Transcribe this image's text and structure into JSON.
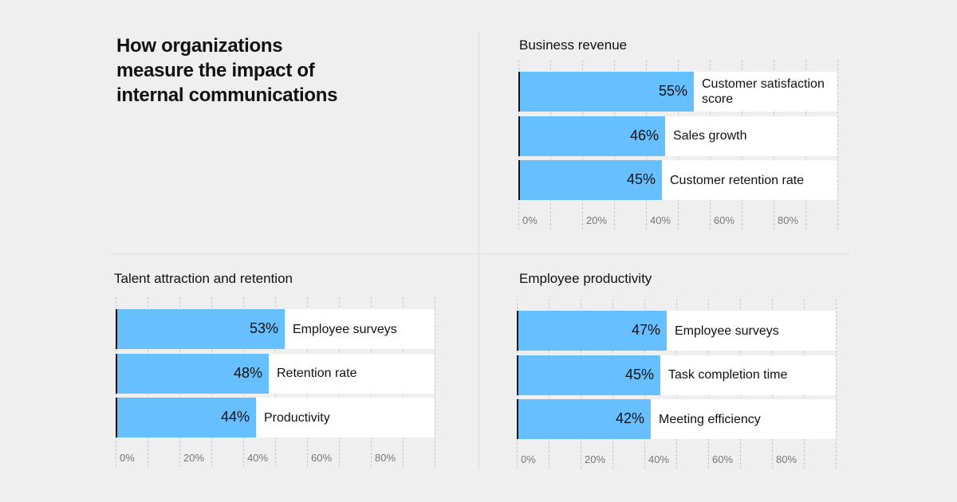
{
  "title": "How organizations measure the impact of internal communications",
  "chart_data": [
    {
      "type": "bar",
      "orientation": "horizontal",
      "title": "Business revenue",
      "categories": [
        "Customer satisfaction score",
        "Sales growth",
        "Customer retention rate"
      ],
      "values": [
        55,
        46,
        45
      ],
      "value_labels": [
        "55%",
        "46%",
        "45%"
      ],
      "color": "#66bfff",
      "xlim": [
        0,
        100
      ],
      "xticks": [
        {
          "value": 0,
          "label": "0%"
        },
        {
          "value": 20,
          "label": "20%"
        },
        {
          "value": 40,
          "label": "40%"
        },
        {
          "value": 60,
          "label": "60%"
        },
        {
          "value": 80,
          "label": "80%"
        }
      ],
      "gridlines": [
        0,
        10,
        20,
        30,
        40,
        50,
        60,
        70,
        80,
        90,
        100
      ]
    },
    {
      "type": "bar",
      "orientation": "horizontal",
      "title": "Talent attraction and retention",
      "categories": [
        "Employee surveys",
        "Retention rate",
        "Productivity"
      ],
      "values": [
        53,
        48,
        44
      ],
      "value_labels": [
        "53%",
        "48%",
        "44%"
      ],
      "color": "#66bfff",
      "xlim": [
        0,
        100
      ],
      "xticks": [
        {
          "value": 0,
          "label": "0%"
        },
        {
          "value": 20,
          "label": "20%"
        },
        {
          "value": 40,
          "label": "40%"
        },
        {
          "value": 60,
          "label": "60%"
        },
        {
          "value": 80,
          "label": "80%"
        }
      ],
      "gridlines": [
        0,
        10,
        20,
        30,
        40,
        50,
        60,
        70,
        80,
        90,
        100
      ]
    },
    {
      "type": "bar",
      "orientation": "horizontal",
      "title": "Employee productivity",
      "categories": [
        "Employee surveys",
        "Task completion time",
        "Meeting efficiency"
      ],
      "values": [
        47,
        45,
        42
      ],
      "value_labels": [
        "47%",
        "45%",
        "42%"
      ],
      "color": "#66bfff",
      "xlim": [
        0,
        100
      ],
      "xticks": [
        {
          "value": 0,
          "label": "0%"
        },
        {
          "value": 20,
          "label": "20%"
        },
        {
          "value": 40,
          "label": "40%"
        },
        {
          "value": 60,
          "label": "60%"
        },
        {
          "value": 80,
          "label": "80%"
        }
      ],
      "gridlines": [
        0,
        10,
        20,
        30,
        40,
        50,
        60,
        70,
        80,
        90,
        100
      ]
    }
  ]
}
